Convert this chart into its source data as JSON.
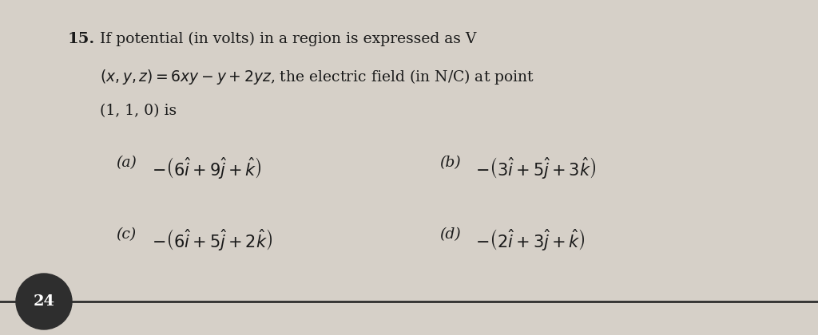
{
  "bg_color": "#d6d0c8",
  "text_color": "#1a1a1a",
  "question_number": "15.",
  "question_line1": "If potential (in volts) in a region is expressed as V",
  "question_line2": "(x, y, z) = 6xy − y + 2yz, the electric field (in N/C) at point",
  "question_line3": "(1, 1, 0) is",
  "option_a_label": "(a)",
  "option_a_math": "$-(6\\hat{i}+9\\hat{j}+\\hat{k})$",
  "option_b_label": "(b)",
  "option_b_math": "$-(3\\hat{i}+5\\hat{j}+3\\hat{k})$",
  "option_c_label": "(c)",
  "option_c_math": "$-(6\\hat{i}+5\\hat{j}+2\\hat{k})$",
  "option_d_label": "(d)",
  "option_d_math": "$-(2\\hat{i}+3\\hat{j}+\\hat{k})$",
  "badge_number": "24",
  "badge_color": "#2e2e2e",
  "badge_text_color": "#ffffff"
}
